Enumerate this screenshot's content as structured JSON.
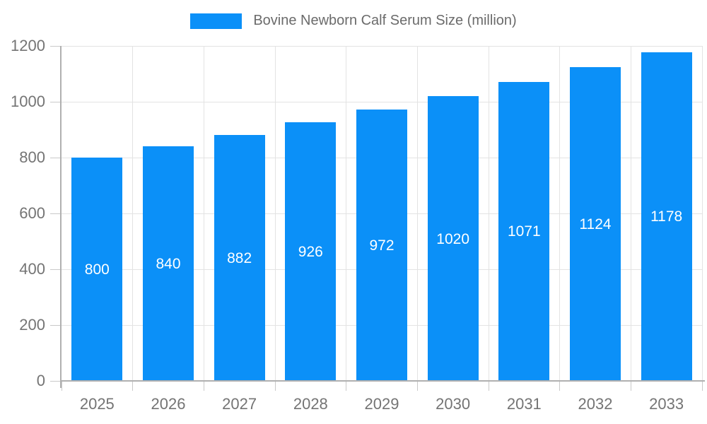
{
  "chart_data": {
    "type": "bar",
    "title": "",
    "categories": [
      "2025",
      "2026",
      "2027",
      "2028",
      "2029",
      "2030",
      "2031",
      "2032",
      "2033"
    ],
    "series": [
      {
        "name": "Bovine Newborn Calf Serum Size (million)",
        "values": [
          800,
          840,
          882,
          926,
          972,
          1020,
          1071,
          1124,
          1178
        ]
      }
    ],
    "xlabel": "",
    "ylabel": "",
    "ylim": [
      0,
      1200
    ],
    "ytick_step": 200,
    "ytick_labels": [
      "0",
      "200",
      "400",
      "600",
      "800",
      "1000",
      "1200"
    ],
    "grid": true,
    "legend_position": "top",
    "colors": {
      "bar": "#0b90f8",
      "bar_value_label": "#ffffff",
      "axis_line": "#b0b0b0",
      "gridline": "#e3e3e3",
      "tick": "#c9c9c9",
      "axis_text": "#747474",
      "legend_text": "#6b6b6b",
      "background": "#ffffff"
    }
  }
}
